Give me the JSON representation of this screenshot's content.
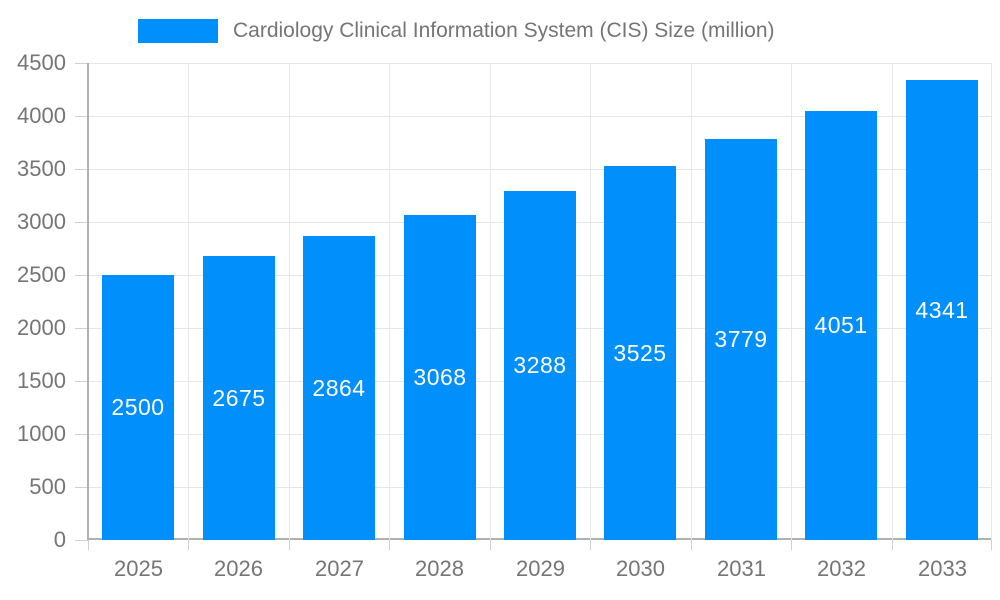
{
  "chart_data": {
    "type": "bar",
    "title": "Cardiology Clinical Information System (CIS) Size (million)",
    "categories": [
      "2025",
      "2026",
      "2027",
      "2028",
      "2029",
      "2030",
      "2031",
      "2032",
      "2033"
    ],
    "series": [
      {
        "name": "Cardiology Clinical Information System (CIS) Size (million)",
        "values": [
          2500,
          2675,
          2864,
          3068,
          3288,
          3525,
          3779,
          4051,
          4341
        ]
      }
    ],
    "values": [
      2500,
      2675,
      2864,
      3068,
      3288,
      3525,
      3779,
      4051,
      4341
    ],
    "value_labels": [
      "2500",
      "2675",
      "2864",
      "3068",
      "3288",
      "3525",
      "3779",
      "4051",
      "4341"
    ],
    "xlabel": "",
    "ylabel": "",
    "ylim": [
      0,
      4500
    ],
    "ytick_step": 500,
    "yticks": [
      "0",
      "500",
      "1000",
      "1500",
      "2000",
      "2500",
      "3000",
      "3500",
      "4000",
      "4500"
    ],
    "grid": true,
    "legend_position": "top",
    "legend_marker": "rectangle",
    "colors": {
      "bar": "#008FFB",
      "grid": "#e7e7e7",
      "axis_line": "#b0b0b0",
      "tick": "#cfcfcf",
      "axis_text": "#757575",
      "value_label_text": "#ffffff",
      "background": "#ffffff"
    }
  }
}
